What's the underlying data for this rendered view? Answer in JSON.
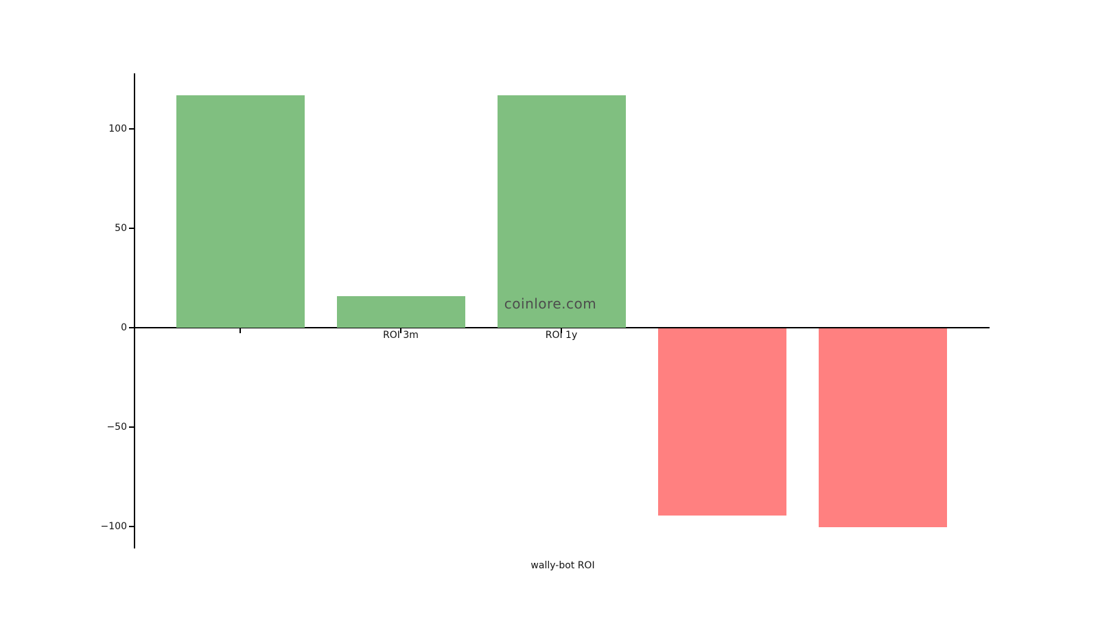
{
  "chart_data": {
    "type": "bar",
    "title": "",
    "xlabel": "wally-bot ROI",
    "ylabel": "",
    "categories": [
      "",
      "ROI 3m",
      "ROI 1y",
      "",
      ""
    ],
    "values": [
      117,
      16,
      117,
      -94,
      -100
    ],
    "bar_colors": [
      "#80BF80",
      "#80BF80",
      "#80BF80",
      "#FF8080",
      "#FF8080"
    ],
    "positive_color": "#80BF80",
    "negative_color": "#FF8080",
    "yticks": [
      100,
      50,
      0,
      -50,
      -100
    ],
    "ytick_labels": [
      "100",
      "50",
      "0",
      "−50",
      "−100"
    ],
    "ylim": [
      -110.9,
      127.9
    ],
    "grid": false,
    "legend_position": "none"
  },
  "watermark": {
    "text": "coinlore.com",
    "color": "#4d4d4d"
  },
  "axis": {
    "line_color": "#000000",
    "tick_label_color": "#111111"
  }
}
